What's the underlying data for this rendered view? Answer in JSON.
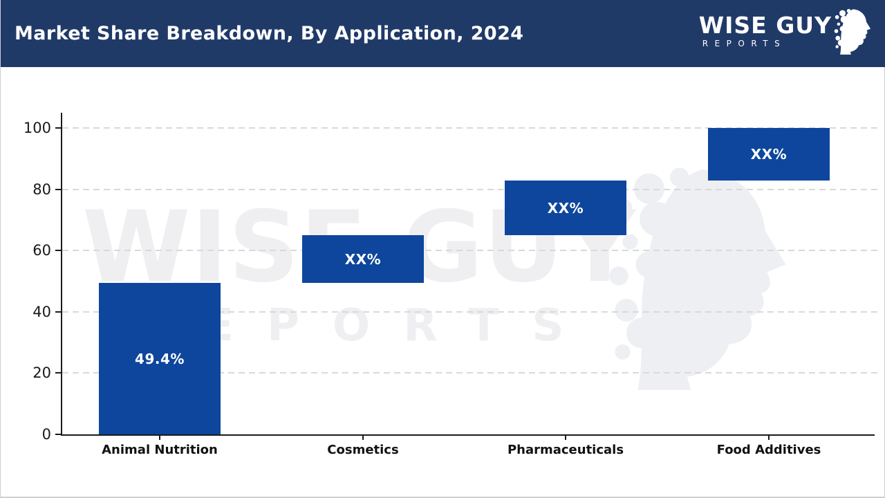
{
  "header": {
    "title": "Market Share Breakdown, By Application, 2024",
    "bg_color": "#203a68",
    "logo": {
      "wordmark": "WISE GUY",
      "subtext": "REPORTS"
    }
  },
  "watermark": {
    "wordmark": "WISE GUY",
    "subtext": "REPORTS"
  },
  "chart_data": {
    "type": "bar",
    "subtype": "waterfall",
    "title": "Market Share Breakdown, By Application, 2024",
    "categories": [
      "Animal Nutrition",
      "Cosmetics",
      "Pharmaceuticals",
      "Food Additives"
    ],
    "segments": [
      {
        "category": "Animal Nutrition",
        "start": 0,
        "end": 49.4,
        "label": "49.4%"
      },
      {
        "category": "Cosmetics",
        "start": 49.4,
        "end": 65.0,
        "label": "XX%"
      },
      {
        "category": "Pharmaceuticals",
        "start": 65.0,
        "end": 82.8,
        "label": "XX%"
      },
      {
        "category": "Food Additives",
        "start": 82.8,
        "end": 100,
        "label": "XX%"
      }
    ],
    "y_ticks": [
      0,
      20,
      40,
      60,
      80,
      100
    ],
    "ylim": [
      0,
      100
    ],
    "xlabel": "",
    "ylabel": "",
    "bar_color": "#0d469c",
    "grid": "horizontal-dashed",
    "gridline_color": "#d9d9d9",
    "legend": "none"
  }
}
